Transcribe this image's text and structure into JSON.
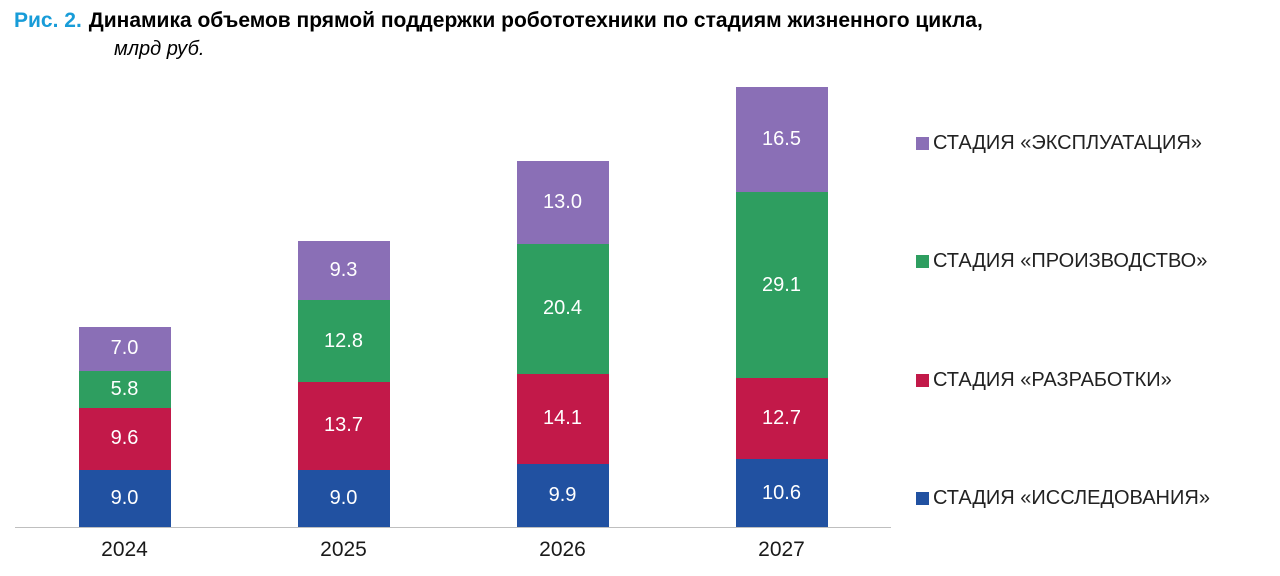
{
  "figure": {
    "label": "Рис. 2.",
    "title": "Динамика объемов прямой поддержки робототехники по стадиям жизненного цикла,",
    "subtitle": "млрд руб."
  },
  "chart_data": {
    "type": "bar",
    "stacked": true,
    "title": "Динамика объемов прямой поддержки робототехники по стадиям жизненного цикла",
    "unit": "млрд руб.",
    "categories": [
      "2024",
      "2025",
      "2026",
      "2027"
    ],
    "series": [
      {
        "name": "СТАДИЯ «ИССЛЕДОВАНИЯ»",
        "color": "#2151A1",
        "values": [
          9.0,
          9.0,
          9.9,
          10.6
        ]
      },
      {
        "name": "СТАДИЯ «РАЗРАБОТКИ»",
        "color": "#C21949",
        "values": [
          9.6,
          13.7,
          14.1,
          12.7
        ]
      },
      {
        "name": "СТАДИЯ «ПРОИЗВОДСТВО»",
        "color": "#2E9E60",
        "values": [
          5.8,
          12.8,
          20.4,
          29.1
        ]
      },
      {
        "name": "СТАДИЯ «ЭКСПЛУАТАЦИЯ»",
        "color": "#8A6FB6",
        "values": [
          7.0,
          9.3,
          13.0,
          16.5
        ]
      }
    ],
    "totals": [
      31.4,
      44.8,
      57.4,
      68.9
    ],
    "value_labels": true,
    "value_label_color": "#ffffff",
    "legend_position": "right",
    "legend_order_top_to_bottom": [
      "СТАДИЯ «ЭКСПЛУАТАЦИЯ»",
      "СТАДИЯ «ПРОИЗВОДСТВО»",
      "СТАДИЯ «РАЗРАБОТКИ»",
      "СТАДИЯ «ИССЛЕДОВАНИЯ»"
    ],
    "grid": false,
    "axis_line_color": "#BFBFBF"
  }
}
